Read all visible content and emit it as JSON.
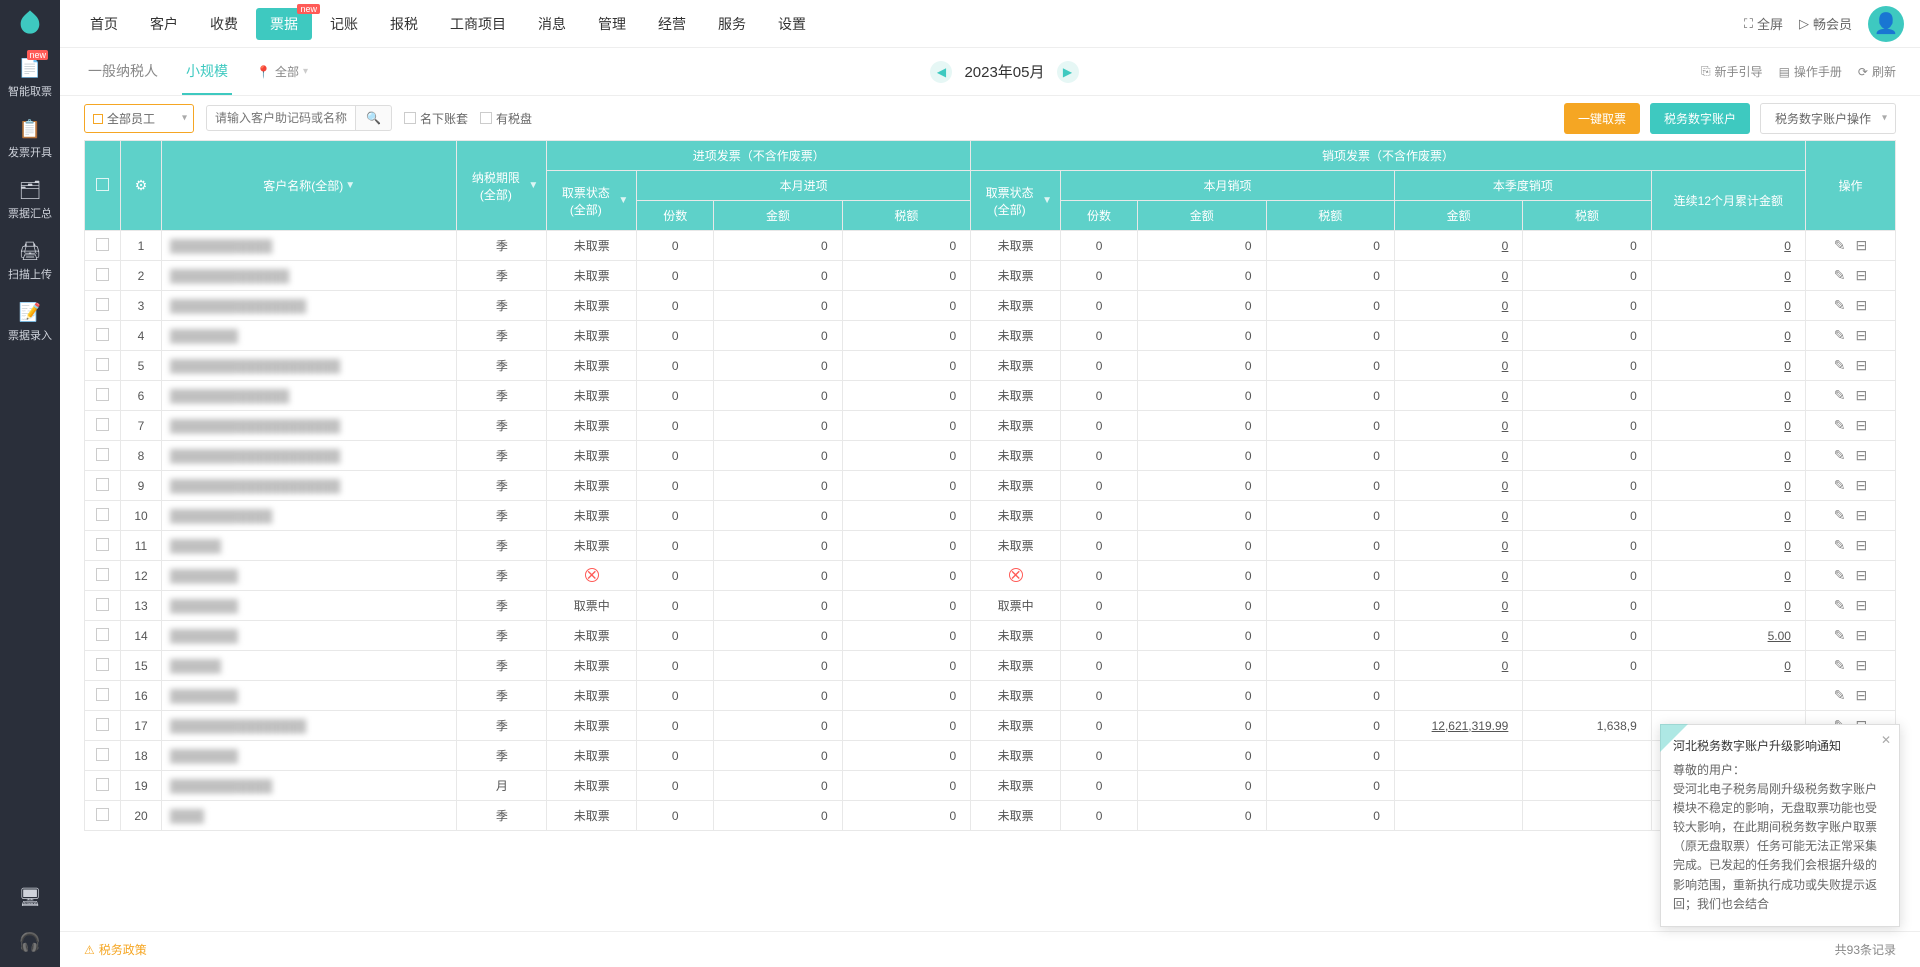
{
  "sidebar": {
    "items": [
      {
        "label": "智能取票",
        "icon": "📄",
        "new": true
      },
      {
        "label": "发票开具",
        "icon": "📋"
      },
      {
        "label": "票据汇总",
        "icon": "🗂"
      },
      {
        "label": "扫描上传",
        "icon": "🖨"
      },
      {
        "label": "票据录入",
        "icon": "📝"
      }
    ]
  },
  "topnav": {
    "menu": [
      "首页",
      "客户",
      "收费",
      "票据",
      "记账",
      "报税",
      "工商项目",
      "消息",
      "管理",
      "经营",
      "服务",
      "设置"
    ],
    "active_index": 3,
    "new_index": 3,
    "fullscreen": "全屏",
    "member": "畅会员"
  },
  "subheader": {
    "tabs": [
      "一般纳税人",
      "小规模"
    ],
    "active_tab": 1,
    "region": "全部",
    "date": "2023年05月",
    "links": {
      "guide": "新手引导",
      "manual": "操作手册",
      "refresh": "刷新"
    }
  },
  "filterbar": {
    "staff_select": "全部员工",
    "search_placeholder": "请输入客户助记码或名称",
    "chk1": "名下账套",
    "chk2": "有税盘",
    "btn1": "一键取票",
    "btn2": "税务数字账户",
    "btn3": "税务数字账户操作"
  },
  "table": {
    "group1": "进项发票（不含作废票）",
    "group2": "销项发票（不含作废票）",
    "headers": {
      "customer": "客户名称(全部)",
      "period": "纳税期限(全部)",
      "status": "取票状态(全部)",
      "month_in": "本月进项",
      "month_out": "本月销项",
      "quarter_out": "本季度销项",
      "cum": "连续12个月累计金额",
      "actions": "操作",
      "count": "份数",
      "amount": "金额",
      "tax": "税额"
    },
    "rows": [
      {
        "idx": 1,
        "name": "████████████",
        "period": "季",
        "s1": "未取票",
        "c1": 0,
        "a1": 0,
        "t1": 0,
        "s2": "未取票",
        "c2": 0,
        "a2": 0,
        "t2": 0,
        "qa": "0",
        "qt": 0,
        "cum": "0"
      },
      {
        "idx": 2,
        "name": "██████████████",
        "period": "季",
        "s1": "未取票",
        "c1": 0,
        "a1": 0,
        "t1": 0,
        "s2": "未取票",
        "c2": 0,
        "a2": 0,
        "t2": 0,
        "qa": "0",
        "qt": 0,
        "cum": "0"
      },
      {
        "idx": 3,
        "name": "████████████████",
        "period": "季",
        "s1": "未取票",
        "c1": 0,
        "a1": 0,
        "t1": 0,
        "s2": "未取票",
        "c2": 0,
        "a2": 0,
        "t2": 0,
        "qa": "0",
        "qt": 0,
        "cum": "0"
      },
      {
        "idx": 4,
        "name": "████████",
        "period": "季",
        "s1": "未取票",
        "c1": 0,
        "a1": 0,
        "t1": 0,
        "s2": "未取票",
        "c2": 0,
        "a2": 0,
        "t2": 0,
        "qa": "0",
        "qt": 0,
        "cum": "0"
      },
      {
        "idx": 5,
        "name": "████████████████████",
        "period": "季",
        "s1": "未取票",
        "c1": 0,
        "a1": 0,
        "t1": 0,
        "s2": "未取票",
        "c2": 0,
        "a2": 0,
        "t2": 0,
        "qa": "0",
        "qt": 0,
        "cum": "0"
      },
      {
        "idx": 6,
        "name": "██████████████",
        "period": "季",
        "s1": "未取票",
        "c1": 0,
        "a1": 0,
        "t1": 0,
        "s2": "未取票",
        "c2": 0,
        "a2": 0,
        "t2": 0,
        "qa": "0",
        "qt": 0,
        "cum": "0"
      },
      {
        "idx": 7,
        "name": "████████████████████",
        "period": "季",
        "s1": "未取票",
        "c1": 0,
        "a1": 0,
        "t1": 0,
        "s2": "未取票",
        "c2": 0,
        "a2": 0,
        "t2": 0,
        "qa": "0",
        "qt": 0,
        "cum": "0"
      },
      {
        "idx": 8,
        "name": "████████████████████",
        "period": "季",
        "s1": "未取票",
        "c1": 0,
        "a1": 0,
        "t1": 0,
        "s2": "未取票",
        "c2": 0,
        "a2": 0,
        "t2": 0,
        "qa": "0",
        "qt": 0,
        "cum": "0"
      },
      {
        "idx": 9,
        "name": "████████████████████",
        "period": "季",
        "s1": "未取票",
        "c1": 0,
        "a1": 0,
        "t1": 0,
        "s2": "未取票",
        "c2": 0,
        "a2": 0,
        "t2": 0,
        "qa": "0",
        "qt": 0,
        "cum": "0"
      },
      {
        "idx": 10,
        "name": "████████████",
        "period": "季",
        "s1": "未取票",
        "c1": 0,
        "a1": 0,
        "t1": 0,
        "s2": "未取票",
        "c2": 0,
        "a2": 0,
        "t2": 0,
        "qa": "0",
        "qt": 0,
        "cum": "0"
      },
      {
        "idx": 11,
        "name": "██████",
        "period": "季",
        "s1": "未取票",
        "c1": 0,
        "a1": 0,
        "t1": 0,
        "s2": "未取票",
        "c2": 0,
        "a2": 0,
        "t2": 0,
        "qa": "0",
        "qt": 0,
        "cum": "0"
      },
      {
        "idx": 12,
        "name": "████████",
        "period": "季",
        "s1": "ERROR",
        "c1": 0,
        "a1": 0,
        "t1": 0,
        "s2": "ERROR",
        "c2": 0,
        "a2": 0,
        "t2": 0,
        "qa": "0",
        "qt": 0,
        "cum": "0"
      },
      {
        "idx": 13,
        "name": "████████",
        "period": "季",
        "s1": "取票中",
        "c1": 0,
        "a1": 0,
        "t1": 0,
        "s2": "取票中",
        "c2": 0,
        "a2": 0,
        "t2": 0,
        "qa": "0",
        "qt": 0,
        "cum": "0"
      },
      {
        "idx": 14,
        "name": "████████",
        "period": "季",
        "s1": "未取票",
        "c1": 0,
        "a1": 0,
        "t1": 0,
        "s2": "未取票",
        "c2": 0,
        "a2": 0,
        "t2": 0,
        "qa": "0",
        "qt": 0,
        "cum": "5.00"
      },
      {
        "idx": 15,
        "name": "██████",
        "period": "季",
        "s1": "未取票",
        "c1": 0,
        "a1": 0,
        "t1": 0,
        "s2": "未取票",
        "c2": 0,
        "a2": 0,
        "t2": 0,
        "qa": "0",
        "qt": 0,
        "cum": "0"
      },
      {
        "idx": 16,
        "name": "████████",
        "period": "季",
        "s1": "未取票",
        "c1": 0,
        "a1": 0,
        "t1": 0,
        "s2": "未取票",
        "c2": 0,
        "a2": 0,
        "t2": 0,
        "qa": "",
        "qt": "",
        "cum": ""
      },
      {
        "idx": 17,
        "name": "████████████████",
        "period": "季",
        "s1": "未取票",
        "c1": 0,
        "a1": 0,
        "t1": 0,
        "s2": "未取票",
        "c2": 0,
        "a2": 0,
        "t2": 0,
        "qa": "12,621,319.99",
        "qt": "1,638,9",
        "cum": ""
      },
      {
        "idx": 18,
        "name": "████████",
        "period": "季",
        "s1": "未取票",
        "c1": 0,
        "a1": 0,
        "t1": 0,
        "s2": "未取票",
        "c2": 0,
        "a2": 0,
        "t2": 0,
        "qa": "",
        "qt": "",
        "cum": ""
      },
      {
        "idx": 19,
        "name": "████████████",
        "period": "月",
        "s1": "未取票",
        "c1": 0,
        "a1": 0,
        "t1": 0,
        "s2": "未取票",
        "c2": 0,
        "a2": 0,
        "t2": 0,
        "qa": "",
        "qt": "",
        "cum": ""
      },
      {
        "idx": 20,
        "name": "████",
        "period": "季",
        "s1": "未取票",
        "c1": 0,
        "a1": 0,
        "t1": 0,
        "s2": "未取票",
        "c2": 0,
        "a2": 0,
        "t2": 0,
        "qa": "",
        "qt": "",
        "cum": ""
      }
    ]
  },
  "footer": {
    "policy": "税务政策",
    "count": "共93条记录"
  },
  "notify": {
    "title": "河北税务数字账户升级影响通知",
    "greeting": "尊敬的用户：",
    "body": "受河北电子税务局刚升级税务数字账户模块不稳定的影响，无盘取票功能也受较大影响，在此期间税务数字账户取票（原无盘取票）任务可能无法正常采集完成。已发起的任务我们会根据升级的影响范围，重新执行成功或失败提示返回；我们也会结合"
  }
}
